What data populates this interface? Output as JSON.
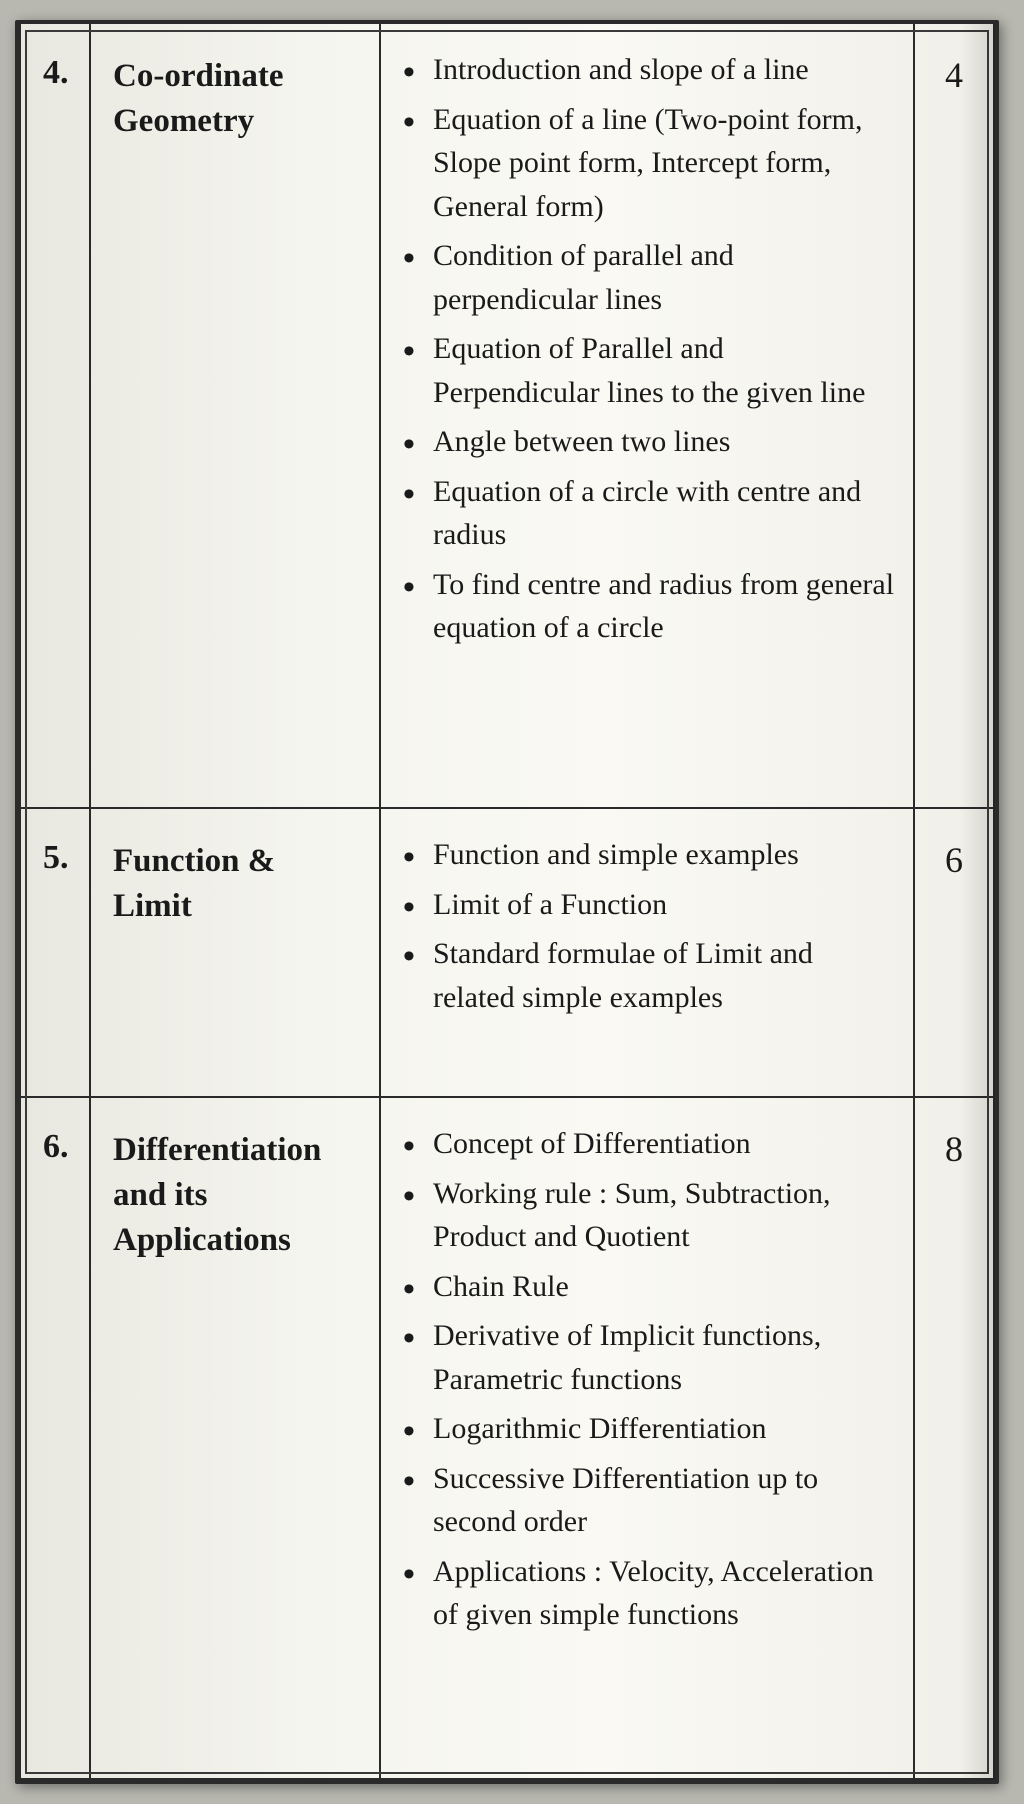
{
  "table": {
    "background_gradient": [
      "#e8e8e0",
      "#f5f5ef",
      "#faf9f4",
      "#f0efe8"
    ],
    "border_color": "#2a2a2a",
    "text_color": "#1a1a1a",
    "font_family": "Times New Roman",
    "columns": {
      "num_width": 70,
      "topic_width": 290,
      "hours_width": 80
    },
    "rows": [
      {
        "num": "4.",
        "topic": "Co-ordinate Geometry",
        "hours": "4",
        "items": [
          "Introduction and slope of a line",
          "Equation of a line (Two-point form, Slope point form, Intercept form, General form)",
          "Condition of parallel and perpendicular lines",
          "Equation of Parallel and Perpendicular lines to the given line",
          "Angle between two lines",
          "Equation of a circle with centre and radius",
          "To find centre and radius from general equation of a circle"
        ]
      },
      {
        "num": "5.",
        "topic": "Function & Limit",
        "hours": "6",
        "items": [
          "Function and simple examples",
          "Limit of a Function",
          "Standard formulae of Limit and related simple examples"
        ]
      },
      {
        "num": "6.",
        "topic": "Differentiation and its  Applications",
        "hours": "8",
        "items": [
          "Concept of Differentiation",
          "Working rule : Sum, Subtraction, Product and Quotient",
          "Chain Rule",
          "Derivative of Implicit functions, Parametric functions",
          "Logarithmic Differentiation",
          "Successive Differentiation up to second order",
          "Applications : Velocity, Acceleration of given simple functions"
        ]
      }
    ]
  }
}
